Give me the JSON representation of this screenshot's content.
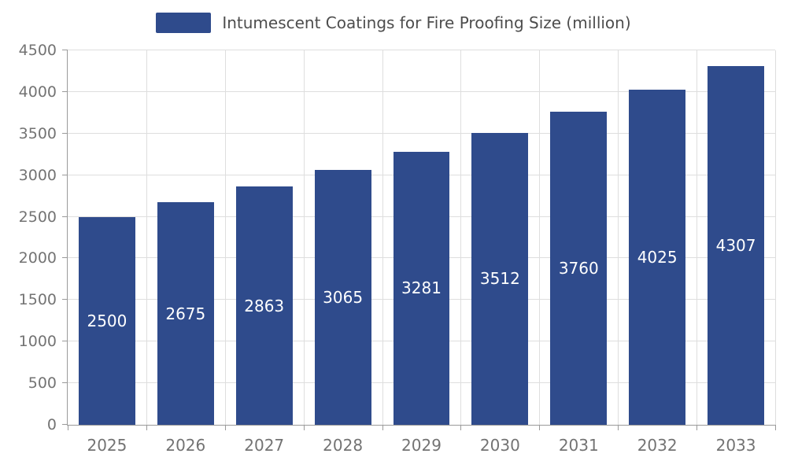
{
  "chart_data": {
    "type": "bar",
    "title": "Intumescent Coatings for Fire Proofing Size (million)",
    "categories": [
      "2025",
      "2026",
      "2027",
      "2028",
      "2029",
      "2030",
      "2031",
      "2032",
      "2033"
    ],
    "values": [
      2500,
      2675,
      2863,
      3065,
      3281,
      3512,
      3760,
      4025,
      4307
    ],
    "xlabel": "",
    "ylabel": "",
    "ylim": [
      0,
      4500
    ],
    "ytick_step": 500,
    "grid": "on",
    "legend_position": "top",
    "colors": {
      "bar": "#2F4B8C",
      "value_label": "#ffffff",
      "axis_text": "#737373",
      "title_text": "#4d4d4d",
      "gridline": "#dedede",
      "axis_line": "#9a9a9a"
    }
  }
}
